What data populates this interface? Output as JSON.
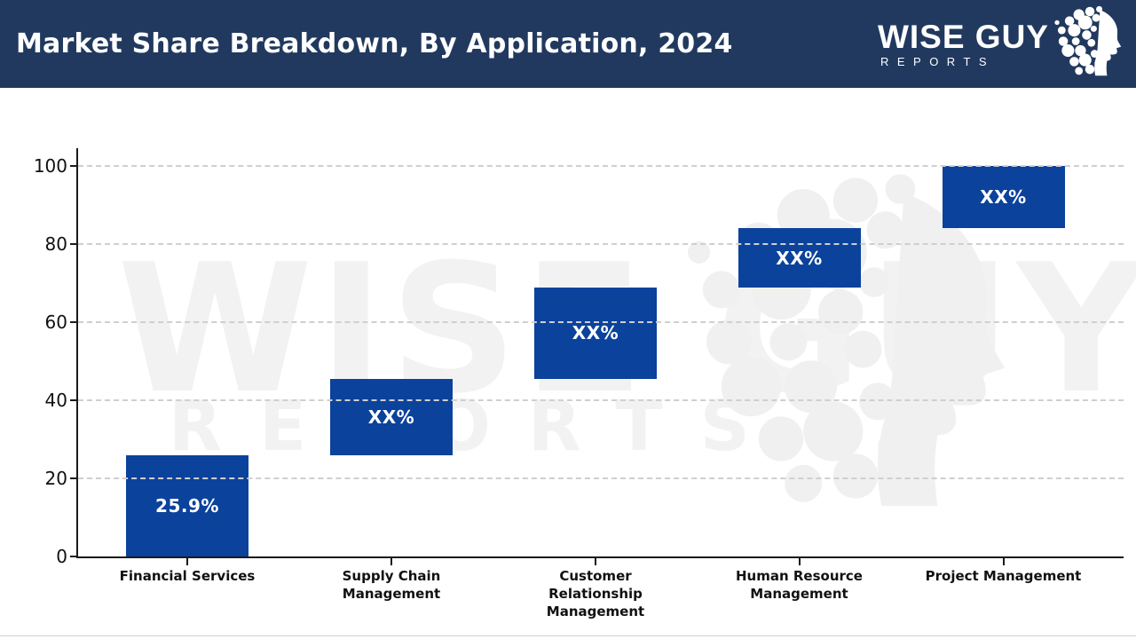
{
  "header": {
    "title": "Market Share Breakdown, By Application, 2024",
    "logo": {
      "brand": "WISE GUY",
      "sub": "REPORTS"
    }
  },
  "watermark": {
    "line1": "WISE GUY",
    "line2": "REPORTS"
  },
  "colors": {
    "header_bg": "#21395f",
    "bar": "#0b429c",
    "bar_label": "#ffffff",
    "axis": "#1a1a1a",
    "tick_label": "#111111",
    "gridline": "#cfcfcf",
    "watermark": "#f2f2f2"
  },
  "chart_data": {
    "type": "bar",
    "subtype": "waterfall",
    "title": "Market Share Breakdown, By Application, 2024",
    "categories": [
      "Financial Services",
      "Supply Chain Management",
      "Customer Relationship Management",
      "Human Resource Management",
      "Project Management"
    ],
    "category_display": [
      "Financial Services",
      "Supply Chain\nManagement",
      "Customer\nRelationship\nManagement",
      "Human Resource\nManagement",
      "Project Management"
    ],
    "segments": [
      {
        "category": "Financial Services",
        "start": 0,
        "end": 25.9,
        "label": "25.9%"
      },
      {
        "category": "Supply Chain Management",
        "start": 25.9,
        "end": 45.5,
        "label": "XX%"
      },
      {
        "category": "Customer Relationship Management",
        "start": 45.5,
        "end": 68.9,
        "label": "XX%"
      },
      {
        "category": "Human Resource Management",
        "start": 68.9,
        "end": 84,
        "label": "XX%"
      },
      {
        "category": "Project Management",
        "start": 84,
        "end": 100,
        "label": "XX%"
      }
    ],
    "xlabel": "",
    "ylabel": "",
    "ylim": [
      0,
      100
    ],
    "yticks": [
      0,
      20,
      40,
      60,
      80,
      100
    ],
    "grid": "horizontal-dashed",
    "legend": "none"
  }
}
